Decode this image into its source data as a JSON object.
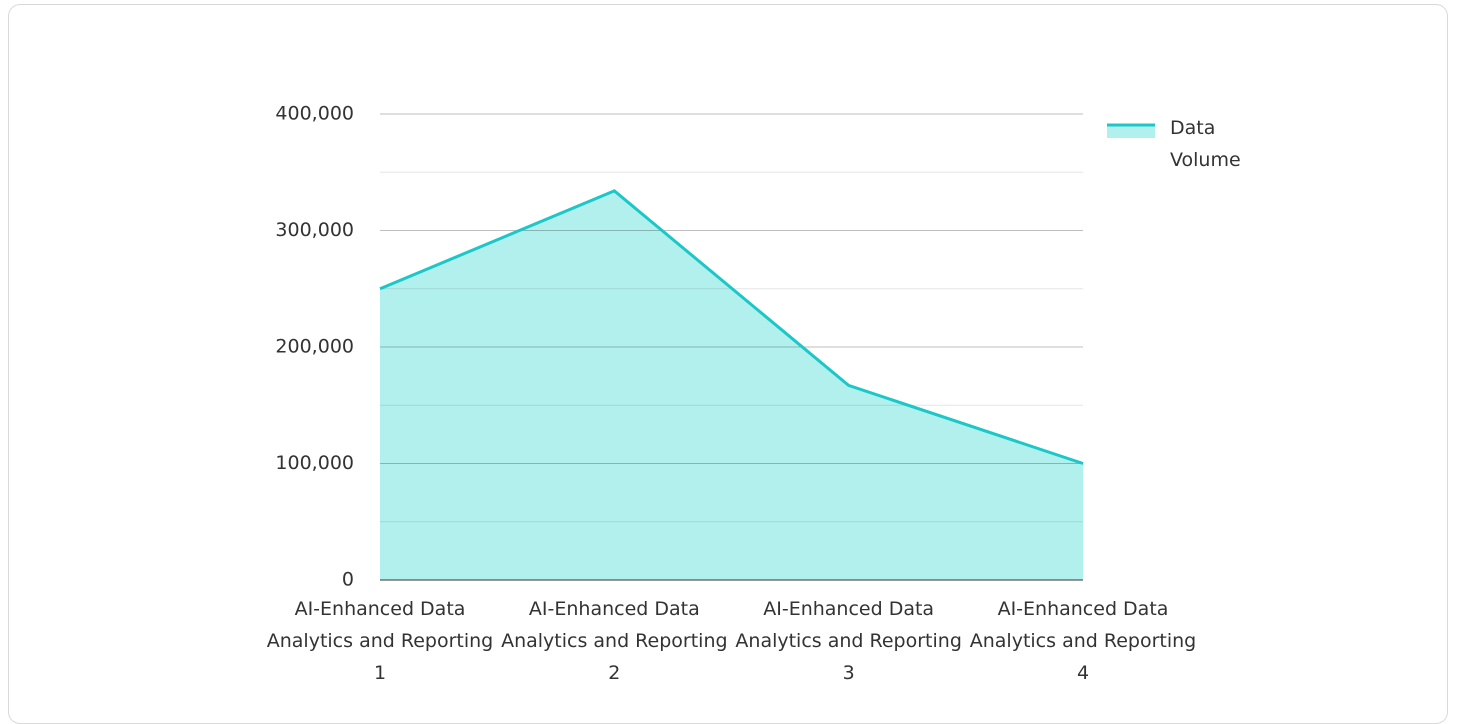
{
  "chart_data": {
    "type": "area",
    "categories": [
      "AI-Enhanced Data Analytics and Reporting 1",
      "AI-Enhanced Data Analytics and Reporting 2",
      "AI-Enhanced Data Analytics and Reporting 3",
      "AI-Enhanced Data Analytics and Reporting 4"
    ],
    "series": [
      {
        "name": "Data Volume",
        "color": "#1cc7c7",
        "fill": "#b2f0ee",
        "values": [
          250000,
          334000,
          167000,
          100000
        ]
      }
    ],
    "ylim": [
      0,
      400000
    ],
    "yticks": [
      0,
      {
        "value": 100000,
        "label": "100,000"
      },
      {
        "value": 200000,
        "label": "200,000"
      },
      {
        "value": 300000,
        "label": "300,000"
      },
      {
        "value": 400000,
        "label": "400,000"
      }
    ],
    "minor_yticks": [
      50000,
      150000,
      250000,
      350000
    ],
    "grid": true,
    "legend": "right"
  }
}
